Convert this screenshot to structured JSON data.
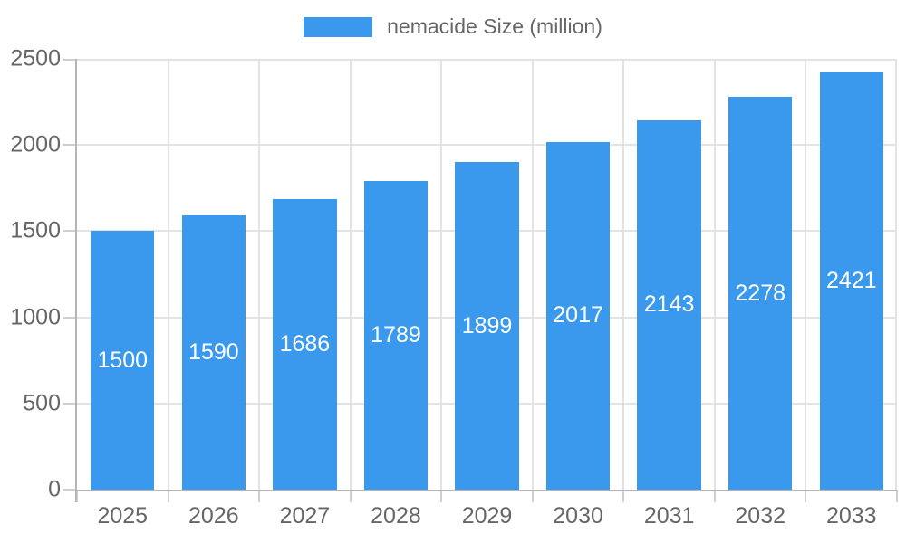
{
  "chart_data": {
    "type": "bar",
    "title": "nemacide Size (million)",
    "legend": {
      "position": "top",
      "label": "nemacide Size (million)"
    },
    "categories": [
      "2025",
      "2026",
      "2027",
      "2028",
      "2029",
      "2030",
      "2031",
      "2032",
      "2033"
    ],
    "values": [
      1500,
      1590,
      1686,
      1789,
      1899,
      2017,
      2143,
      2278,
      2421
    ],
    "bar_labels": [
      "1500",
      "1590",
      "1686",
      "1789",
      "1899",
      "2017",
      "2143",
      "2278",
      "2421"
    ],
    "yticks": [
      0,
      500,
      1000,
      1500,
      2000,
      2500
    ],
    "ylim": [
      0,
      2500
    ],
    "xlabel": "",
    "ylabel": "",
    "grid": true,
    "bar_labels_inside": true,
    "colors": {
      "bar": "#3A99EC",
      "bar_label": "#FFFFFF",
      "axis_text": "#666666",
      "grid_line": "#E3E3E3",
      "axis_line": "#B5B5B5",
      "tick_mark": "#CFCFCF"
    }
  }
}
